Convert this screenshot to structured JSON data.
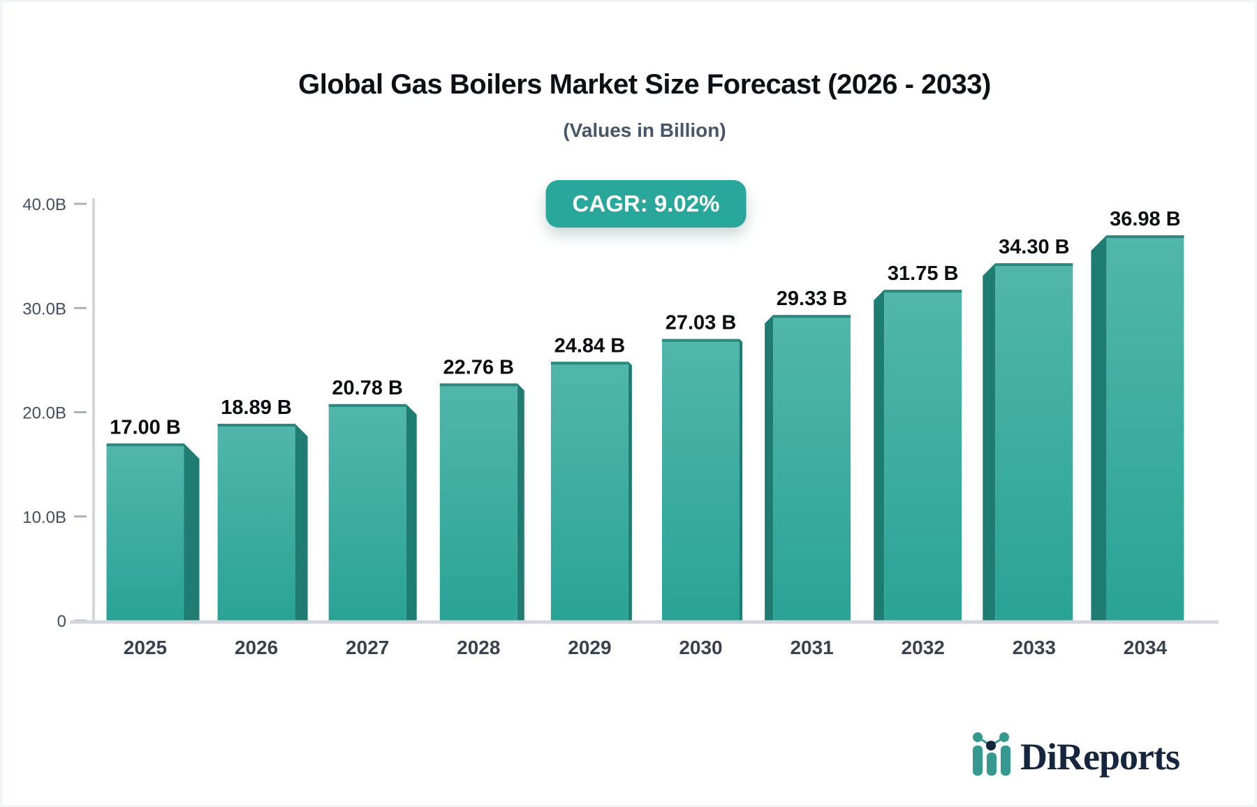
{
  "chart_data": {
    "type": "bar",
    "title": "Global Gas Boilers Market Size Forecast (2026 - 2033)",
    "subtitle": "(Values in Billion)",
    "cagr_label": "CAGR: 9.02%",
    "categories": [
      "2025",
      "2026",
      "2027",
      "2028",
      "2029",
      "2030",
      "2031",
      "2032",
      "2033",
      "2034"
    ],
    "values": [
      17.0,
      18.89,
      20.78,
      22.76,
      24.84,
      27.03,
      29.33,
      31.75,
      34.3,
      36.98
    ],
    "value_labels": [
      "17.00 B",
      "18.89 B",
      "20.78 B",
      "22.76 B",
      "24.84 B",
      "27.03 B",
      "29.33 B",
      "31.75 B",
      "34.30 B",
      "36.98 B"
    ],
    "y_ticks": [
      {
        "value": 0,
        "label": "0"
      },
      {
        "value": 10,
        "label": "10.0B"
      },
      {
        "value": 20,
        "label": "20.0B"
      },
      {
        "value": 30,
        "label": "30.0B"
      },
      {
        "value": 40,
        "label": "40.0B"
      }
    ],
    "ylim": [
      0,
      40
    ],
    "xlabel": "",
    "ylabel": "",
    "grid": false,
    "legend": false,
    "bar_style": "3d-extruded"
  },
  "colors": {
    "title": "#0d1015",
    "subtitle": "#475569",
    "badge_bg": "#2aa79b",
    "bar_front_top": "#52b6ab",
    "bar_front_bottom": "#29a396",
    "bar_side": "#1e7c72",
    "bar_top_edge": "#2a887e",
    "axis_line": "#d2d7de",
    "tick": "#a9b0ba",
    "y_label": "#434e5e",
    "x_label": "#39424e",
    "value_label": "#0b0d10",
    "logo_navy": "#16263f",
    "logo_teal": "#36998f"
  },
  "logo": {
    "text": "DiReports",
    "icon": "mini-bar-chart-sparkline-icon"
  }
}
